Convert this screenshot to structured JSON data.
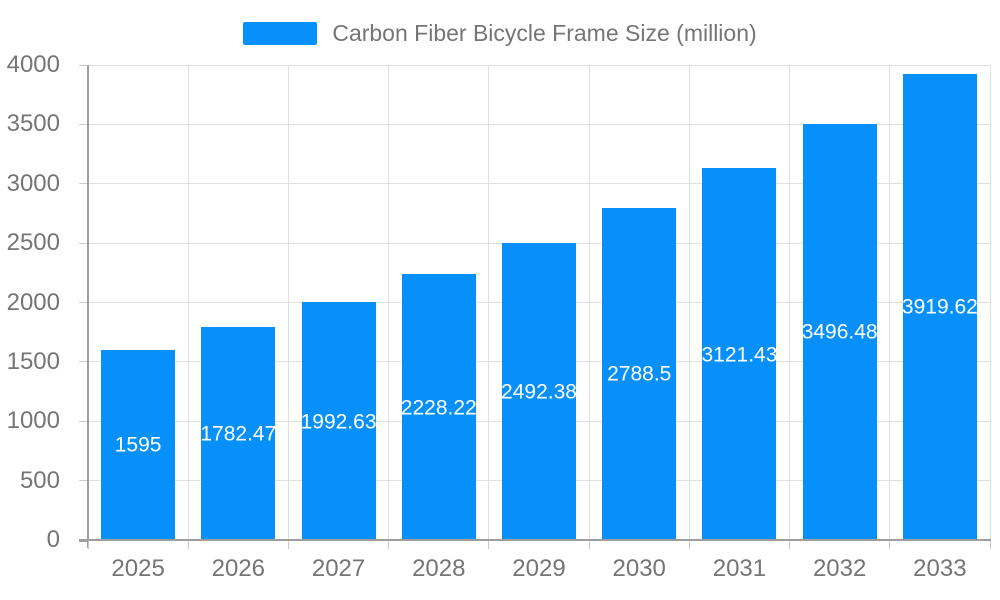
{
  "chart_data": {
    "type": "bar",
    "title": "Carbon Fiber Bicycle Frame Size (million)",
    "legend": {
      "position": "top-center",
      "entries": [
        "Carbon Fiber Bicycle Frame Size (million)"
      ]
    },
    "categories": [
      "2025",
      "2026",
      "2027",
      "2028",
      "2029",
      "2030",
      "2031",
      "2032",
      "2033"
    ],
    "series": [
      {
        "name": "Carbon Fiber Bicycle Frame Size (million)",
        "values": [
          1595,
          1782.47,
          1992.63,
          2228.22,
          2492.38,
          2788.5,
          3121.43,
          3496.48,
          3919.62
        ],
        "data_labels": [
          "1595",
          "1782.47",
          "1992.63",
          "2228.22",
          "2492.38",
          "2788.5",
          "3121.43",
          "3496.48",
          "3919.62"
        ]
      }
    ],
    "xlabel": "",
    "ylabel": "",
    "ylim": [
      0,
      4000
    ],
    "yticks": [
      0,
      500,
      1000,
      1500,
      2000,
      2500,
      3000,
      3500,
      4000
    ],
    "grid": true,
    "colors": {
      "bar": "#0890fa",
      "bar_label_text": "#ffffff",
      "axis_text": "#757575",
      "legend_text": "#757575",
      "gridline": "#e0e0e0",
      "axis_line": "#9e9e9e"
    }
  }
}
